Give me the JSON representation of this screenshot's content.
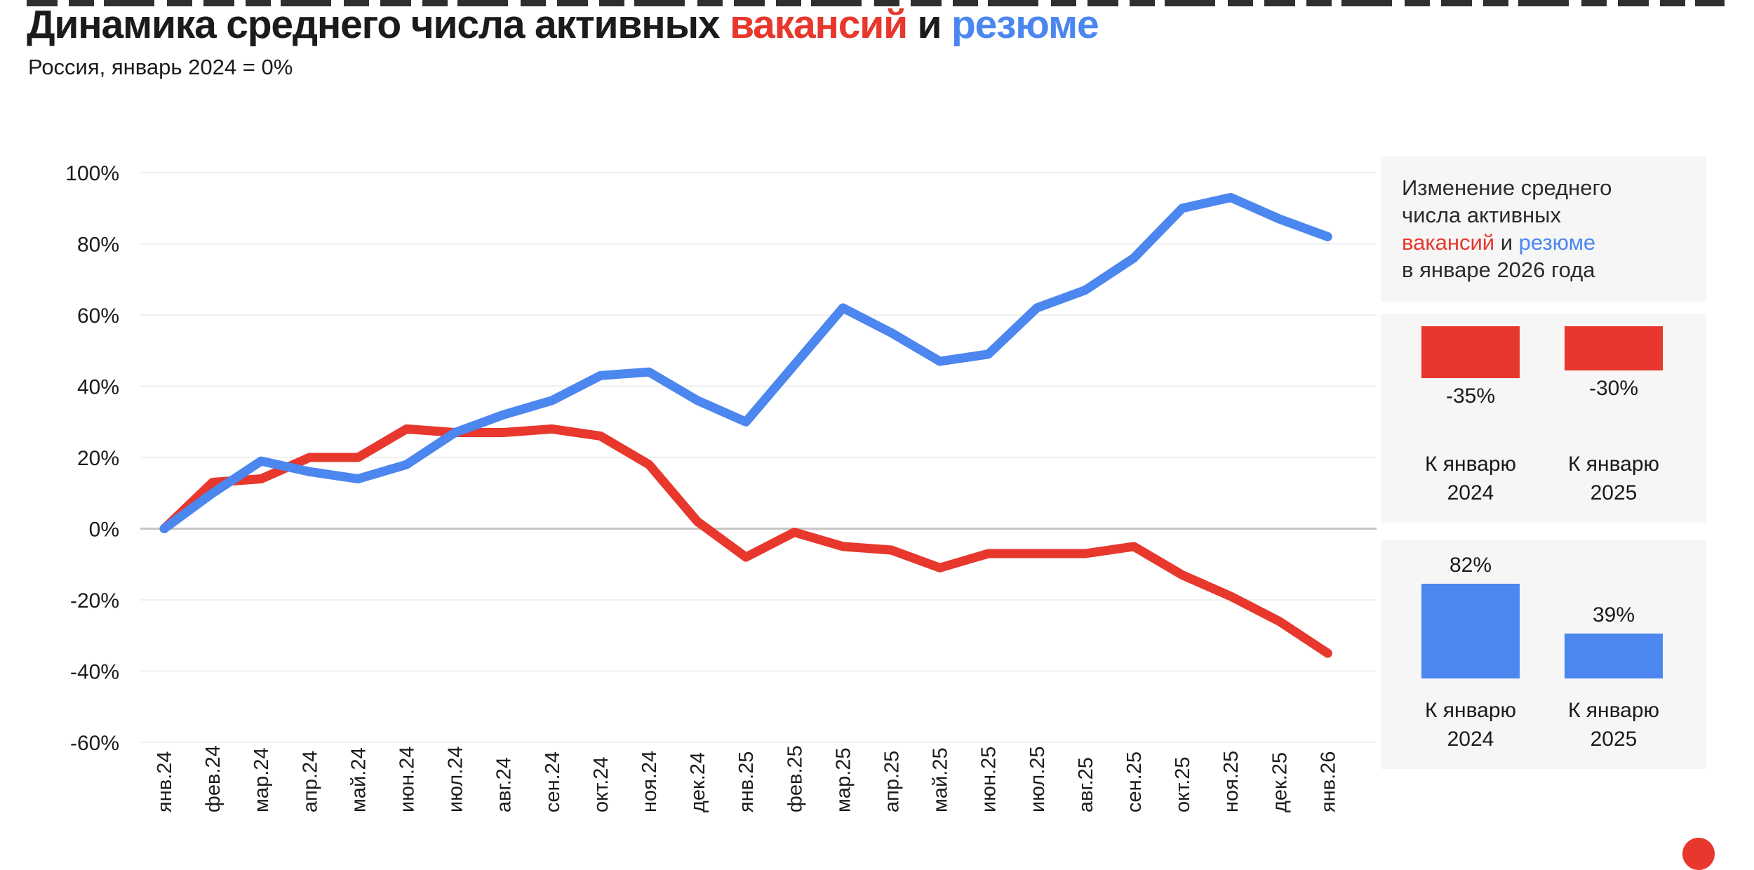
{
  "title": {
    "part1": "Динамика среднего числа активных ",
    "red_word": "вакансий",
    "part2": " и ",
    "blue_word": "резюме"
  },
  "subtitle": "Россия, январь 2024 = 0%",
  "colors": {
    "red": "#E8372C",
    "blue": "#4C86EF",
    "text": "#1B1B1B",
    "panel_bg": "#F6F6F6",
    "grid": "#EFEFEF",
    "zero_line": "#C6C6C6"
  },
  "chart_data": {
    "type": "line",
    "title": "Динамика среднего числа активных вакансий и резюме",
    "subtitle": "Россия, январь 2024 = 0%",
    "x": [
      "янв.24",
      "фев.24",
      "мар.24",
      "апр.24",
      "май.24",
      "июн.24",
      "июл.24",
      "авг.24",
      "сен.24",
      "окт.24",
      "ноя.24",
      "дек.24",
      "янв.25",
      "фев.25",
      "мар.25",
      "апр.25",
      "май.25",
      "июн.25",
      "июл.25",
      "авг.25",
      "сен.25",
      "окт.25",
      "ноя.25",
      "дек.25",
      "янв.26"
    ],
    "series": [
      {
        "name": "вакансии",
        "color": "#E8372C",
        "values": [
          0,
          13,
          14,
          20,
          20,
          28,
          27,
          27,
          28,
          26,
          18,
          2,
          -8,
          -1,
          -5,
          -6,
          -11,
          -7,
          -7,
          -7,
          -5,
          -13,
          -19,
          -26,
          -35
        ]
      },
      {
        "name": "резюме",
        "color": "#4C86EF",
        "values": [
          0,
          10,
          19,
          16,
          14,
          18,
          27,
          32,
          36,
          43,
          44,
          36,
          30,
          46,
          62,
          55,
          47,
          49,
          62,
          67,
          76,
          90,
          93,
          87,
          82
        ]
      }
    ],
    "y_ticks": [
      100,
      80,
      60,
      40,
      20,
      0,
      -20,
      -40,
      -60
    ],
    "y_tick_labels": [
      "100%",
      "80%",
      "60%",
      "40%",
      "20%",
      "0%",
      "-20%",
      "-40%",
      "-60%"
    ],
    "ylim": [
      -60,
      100
    ],
    "grid": true,
    "zero_line": true,
    "legend_position": "none"
  },
  "side_panel": {
    "info": {
      "line1": "Изменение среднего",
      "line2": "числа активных",
      "line3_red": "вакансий",
      "line3_mid": " и ",
      "line3_blue": "резюме",
      "line4": "в январе 2026 года"
    },
    "vacancies_change": {
      "series": "вакансии",
      "color": "#E8372C",
      "bars": [
        {
          "label": "-35%",
          "value": -35,
          "caption_top": "К январю",
          "caption_bottom": "2024"
        },
        {
          "label": "-30%",
          "value": -30,
          "caption_top": "К январю",
          "caption_bottom": "2025"
        }
      ]
    },
    "resumes_change": {
      "series": "резюме",
      "color": "#4C86EF",
      "bars": [
        {
          "label": "82%",
          "value": 82,
          "caption_top": "К январю",
          "caption_bottom": "2024"
        },
        {
          "label": "39%",
          "value": 39,
          "caption_top": "К январю",
          "caption_bottom": "2025"
        }
      ]
    }
  },
  "logo": {
    "name": "hh-logo-partial",
    "color": "#E8372C"
  }
}
